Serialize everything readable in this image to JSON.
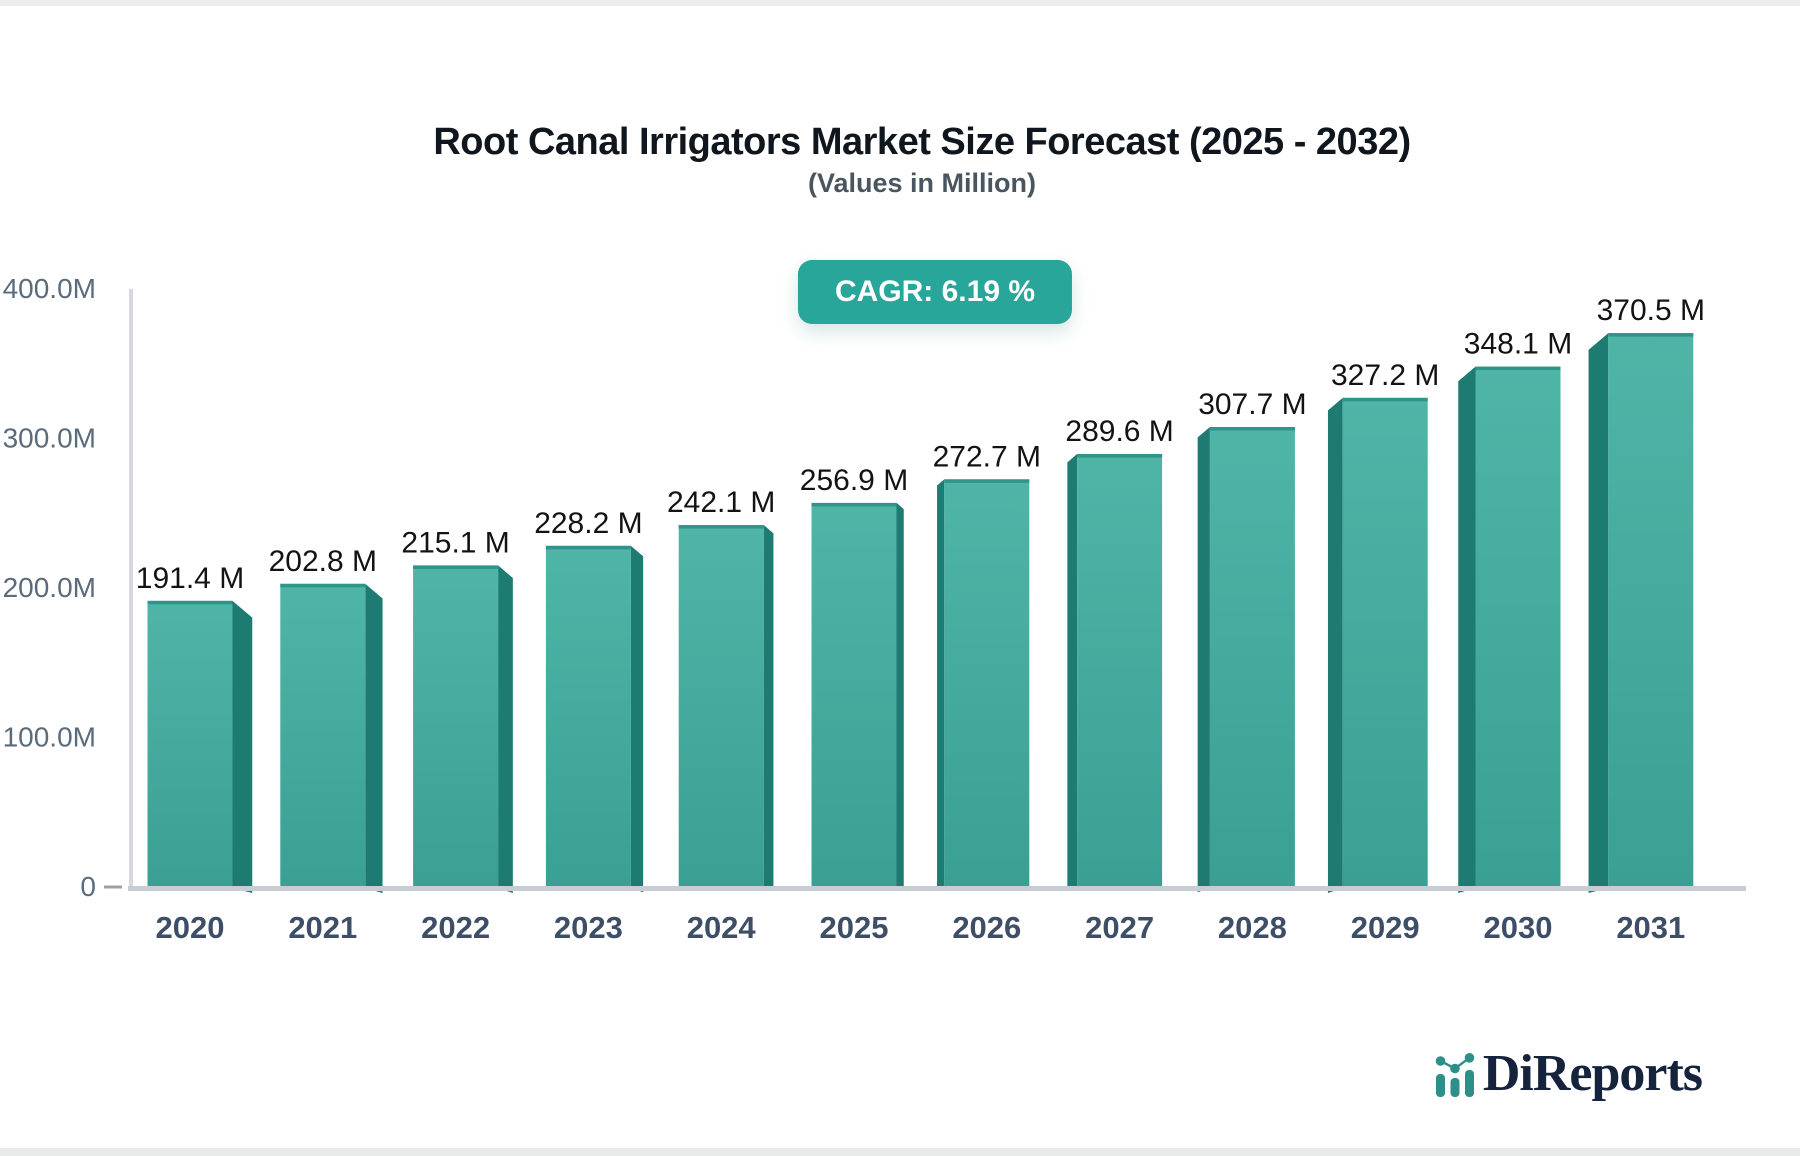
{
  "chart_data": {
    "type": "bar",
    "title": "Root Canal Irrigators Market Size Forecast (2025 - 2032)",
    "subtitle": "(Values in Million)",
    "cagr_label": "CAGR: 6.19 %",
    "categories": [
      "2020",
      "2021",
      "2022",
      "2023",
      "2024",
      "2025",
      "2026",
      "2027",
      "2028",
      "2029",
      "2030",
      "2031"
    ],
    "values": [
      191.4,
      202.8,
      215.1,
      228.2,
      242.1,
      256.9,
      272.7,
      289.6,
      307.7,
      327.2,
      348.1,
      370.5
    ],
    "value_suffix": " M",
    "ylim": [
      0,
      400
    ],
    "yticks": [
      {
        "value": 0,
        "label": "0"
      },
      {
        "value": 100,
        "label": "100.0M"
      },
      {
        "value": 200,
        "label": "200.0M"
      },
      {
        "value": 300,
        "label": "300.0M"
      },
      {
        "value": 400,
        "label": "400.0M"
      }
    ],
    "xlabel": "",
    "ylabel": "",
    "grid": false,
    "legend": false,
    "style": "3d-column"
  },
  "badge": {
    "label": "CAGR: 6.19 %"
  },
  "logo": {
    "icon": "bar-chart-trend-icon",
    "text": "DiReports"
  },
  "colors": {
    "accent_teal": "#29a69a",
    "bar_face_top": "#4fb5a7",
    "bar_face_bottom": "#3aa093",
    "bar_top_edge": "#2d9589",
    "bar_side": "#1e7b71",
    "axis_line": "#d6dade",
    "baseline": "#c8ccd3",
    "zero_dash": "#9aa2ac",
    "tick_text": "#5a6b7c",
    "year_text": "#3d4e66",
    "value_text": "#131313",
    "title_text": "#10161d",
    "subtitle_text": "#49565f",
    "badge_text": "#ffffff",
    "logo_navy": "#16233c",
    "logo_teal": "#2e8f88"
  }
}
